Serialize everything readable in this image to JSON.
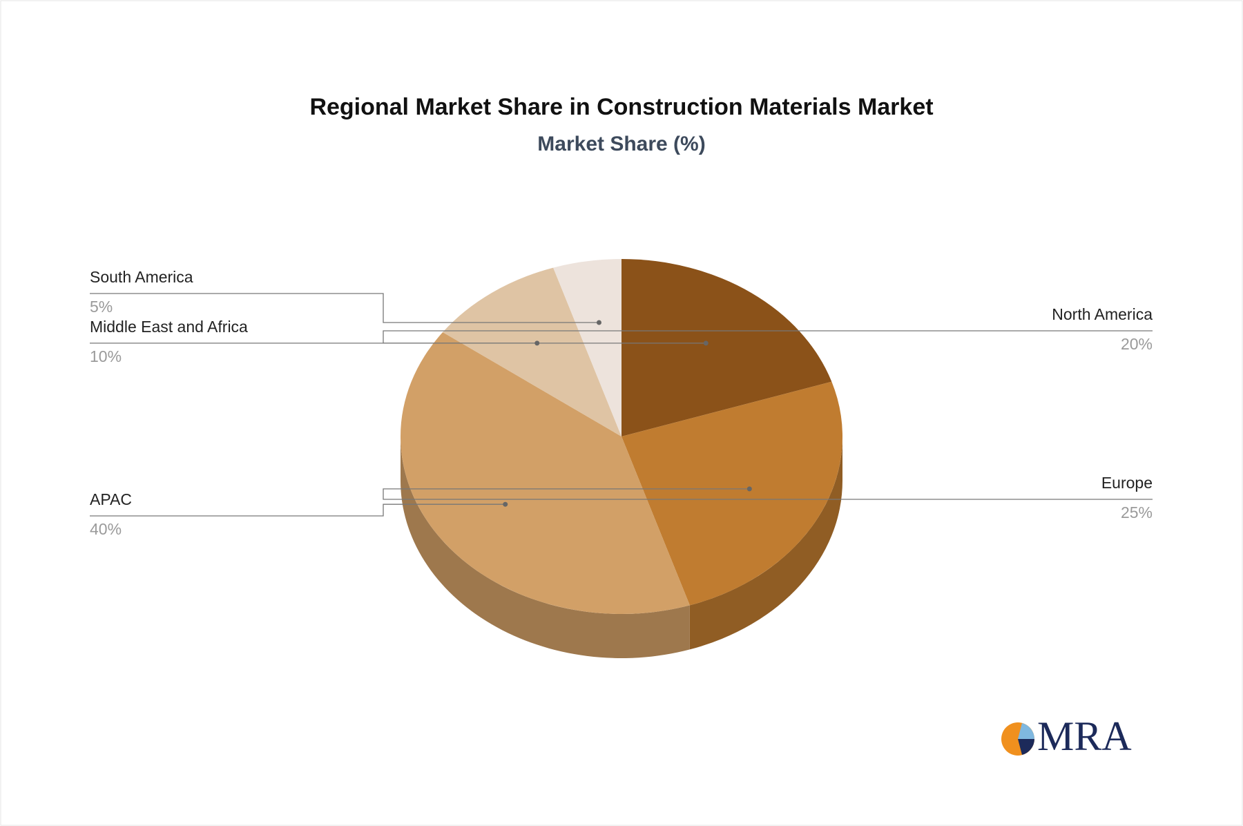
{
  "chart_data": {
    "type": "pie",
    "title": "Regional Market Share in Construction Materials Market",
    "subtitle": "Market Share (%)",
    "categories": [
      "North America",
      "Europe",
      "APAC",
      "Middle East and Africa",
      "South America"
    ],
    "values": [
      20,
      25,
      40,
      10,
      5
    ],
    "value_labels": [
      "20%",
      "25%",
      "40%",
      "10%",
      "5%"
    ],
    "colors": [
      "#8b5219",
      "#c07c30",
      "#d2a067",
      "#dfc4a4",
      "#ede3dc"
    ]
  },
  "logo": "MRA"
}
